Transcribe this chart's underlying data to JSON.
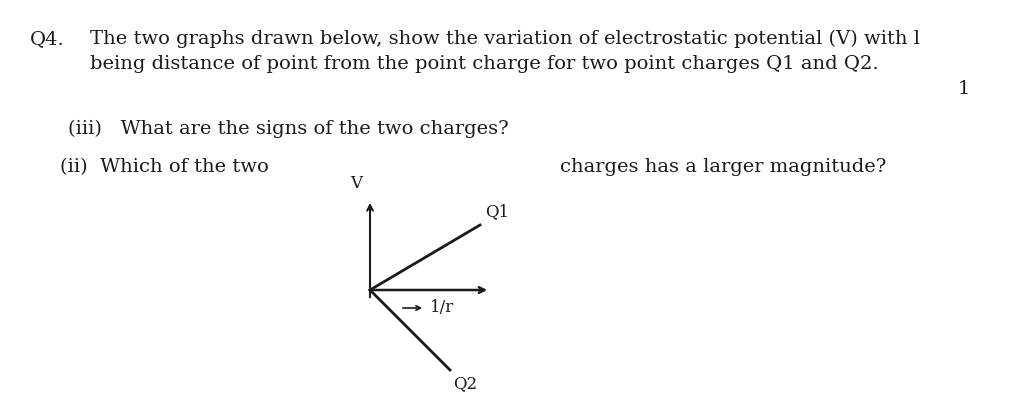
{
  "bg_color": "#ffffff",
  "text_color": "#1a1a1a",
  "title_line1": "Q4.   The two graphs drawn below, show the variation of electrostatic potential (V) with l",
  "title_line2": "        being distance of point from the point charge for two point charges Q1 and Q2.",
  "mark": "1",
  "question_iii": "(iii)   What are the signs of the two charges?",
  "question_ii_left": "(ii)  Which of the two",
  "question_ii_right": "charges has a larger magnitude?",
  "label_V": "V",
  "label_1r": "1/r",
  "label_Q1": "Q1",
  "label_Q2": "Q2",
  "font_size_main": 14,
  "font_size_label": 12
}
